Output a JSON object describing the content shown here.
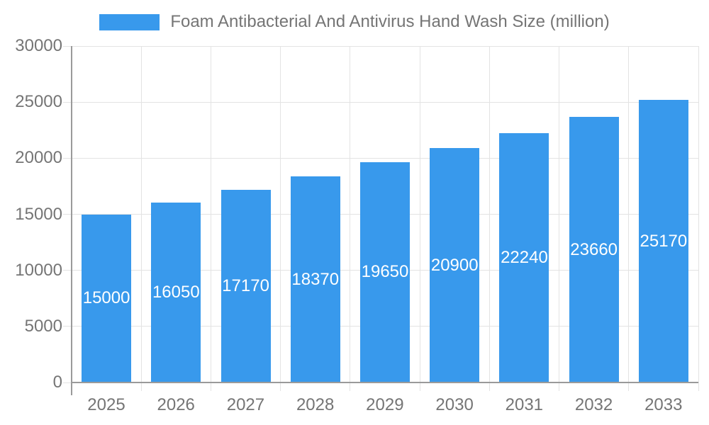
{
  "chart_data": {
    "type": "bar",
    "title": "Foam Antibacterial And Antivirus Hand Wash Size (million)",
    "legend_position": "top",
    "categories": [
      "2025",
      "2026",
      "2027",
      "2028",
      "2029",
      "2030",
      "2031",
      "2032",
      "2033"
    ],
    "values": [
      15000,
      16050,
      17170,
      18370,
      19650,
      20900,
      22240,
      23660,
      25170
    ],
    "xlabel": "",
    "ylabel": "",
    "ylim": [
      0,
      30000
    ],
    "ytick_step": 5000,
    "yticks": [
      0,
      5000,
      10000,
      15000,
      20000,
      25000,
      30000
    ],
    "grid": true,
    "bar_color": "#3899EC",
    "bar_value_label_color": "#ffffff",
    "axis_text_color": "#757575",
    "grid_color": "#e3e3e3",
    "axis_line_color": "#9a9a9a",
    "background_color": "#ffffff"
  }
}
